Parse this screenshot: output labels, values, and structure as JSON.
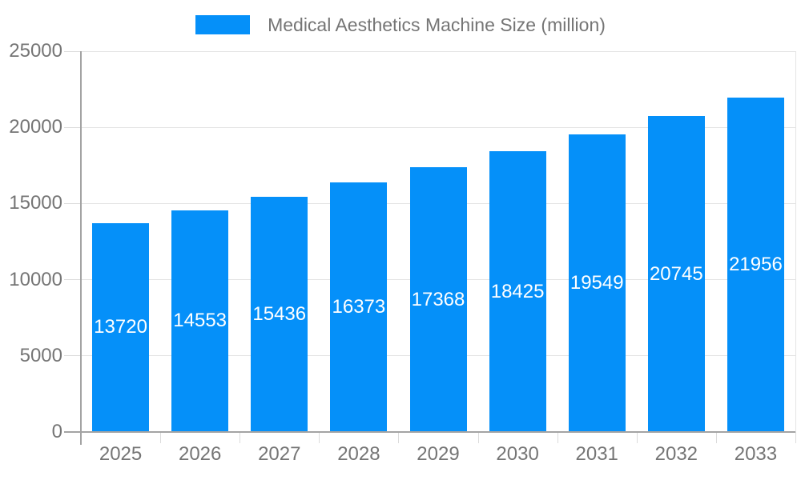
{
  "chart_data": {
    "type": "bar",
    "title": "Medical Aesthetics Machine Size (million)",
    "categories": [
      "2025",
      "2026",
      "2027",
      "2028",
      "2029",
      "2030",
      "2031",
      "2032",
      "2033"
    ],
    "series": [
      {
        "name": "Medical Aesthetics Machine Size (million)",
        "values": [
          13720,
          14553,
          15436,
          16373,
          17368,
          18425,
          19549,
          20745,
          21956
        ]
      }
    ],
    "xlabel": "",
    "ylabel": "",
    "ylim": [
      0,
      25000
    ],
    "yticks": [
      0,
      5000,
      10000,
      15000,
      20000,
      25000
    ],
    "grid": true,
    "legend_position": "top",
    "value_label_position": "inside-center",
    "colors": {
      "bar": "#0590F9",
      "value_label": "#FFFFFF",
      "axis_text": "#757575",
      "grid_line": "#E4E4E4",
      "tick_line": "#DCDCDC",
      "axis_line": "#A3A3A3",
      "background": "#FFFFFF"
    }
  }
}
